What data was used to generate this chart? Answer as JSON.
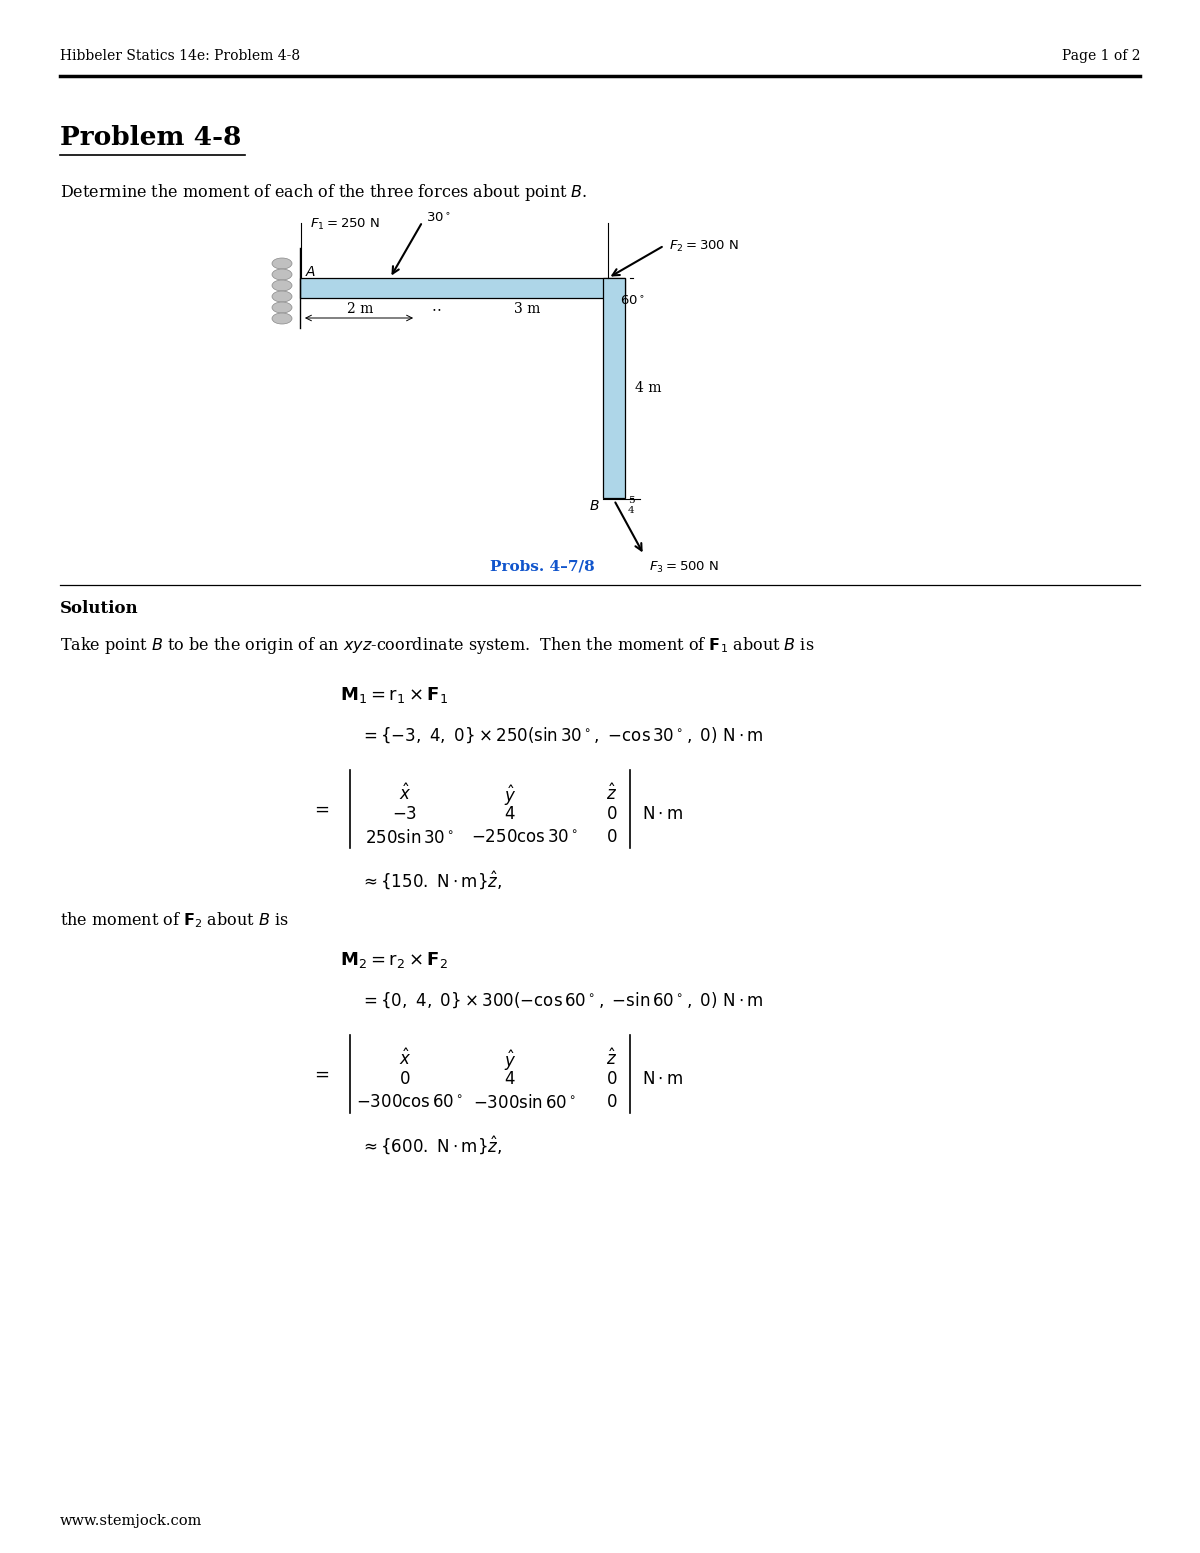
{
  "page_title_left": "Hibbeler Statics 14e: Problem 4-8",
  "page_title_right": "Page 1 of 2",
  "problem_title": "Problem 4-8",
  "diagram_caption": "Probs. 4–7/8",
  "solution_header": "Solution",
  "footer": "www.stemjock.com",
  "bg_color": "#ffffff",
  "struct_color": "#aed6e8",
  "caption_color": "#1155cc"
}
